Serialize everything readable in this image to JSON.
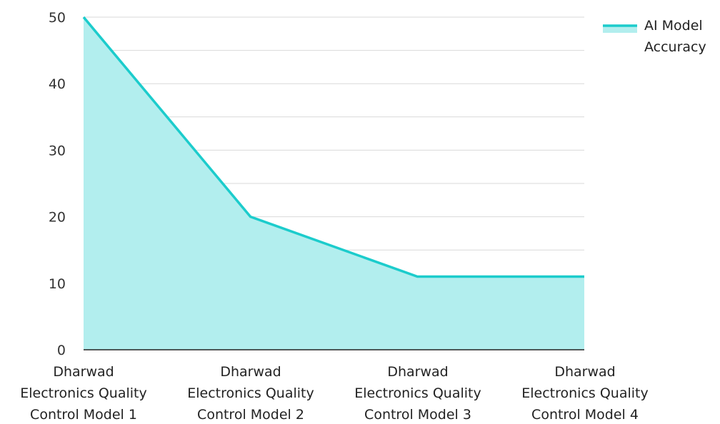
{
  "chart_data": {
    "type": "area",
    "categories": [
      [
        "Dharwad",
        "Electronics Quality",
        "Control Model 1"
      ],
      [
        "Dharwad",
        "Electronics Quality",
        "Control Model 2"
      ],
      [
        "Dharwad",
        "Electronics Quality",
        "Control Model 3"
      ],
      [
        "Dharwad",
        "Electronics Quality",
        "Control Model 4"
      ]
    ],
    "series": [
      {
        "name": "AI Model Accuracy",
        "legend_lines": [
          "AI Model",
          "Accuracy"
        ],
        "values": [
          50,
          20,
          11,
          11
        ]
      }
    ],
    "ylim": [
      0,
      50
    ],
    "y_ticks": [
      "0",
      "10",
      "20",
      "30",
      "40",
      "50"
    ],
    "grid": true,
    "legend_position": "top-right",
    "colors": {
      "line": "#1ccccc",
      "fill": "#b2eeee",
      "grid": "#d9d9d9",
      "axis": "#222222"
    }
  }
}
